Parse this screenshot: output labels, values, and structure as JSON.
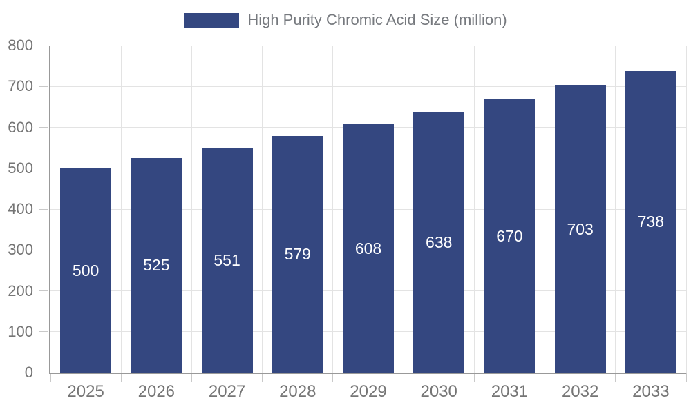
{
  "chart_data": {
    "type": "bar",
    "title": "High Purity Chromic Acid Size (million)",
    "categories": [
      "2025",
      "2026",
      "2027",
      "2028",
      "2029",
      "2030",
      "2031",
      "2032",
      "2033"
    ],
    "values": [
      500,
      525,
      551,
      579,
      608,
      638,
      670,
      703,
      738
    ],
    "xlabel": "",
    "ylabel": "",
    "ylim": [
      0,
      800
    ],
    "ytick_interval": 100,
    "grid": true,
    "legend_position": "top-center",
    "bar_label_position": "inside-middle",
    "legend_entries": [
      "High Purity Chromic Acid Size (million)"
    ]
  },
  "colors": {
    "bar": "#344780",
    "grid": "#e3e3e3",
    "axis": "#999999",
    "tick": "#c9c9c9",
    "tick_label": "#757575",
    "legend_text": "#76797e",
    "value_label": "#ffffff",
    "background": "#ffffff"
  }
}
